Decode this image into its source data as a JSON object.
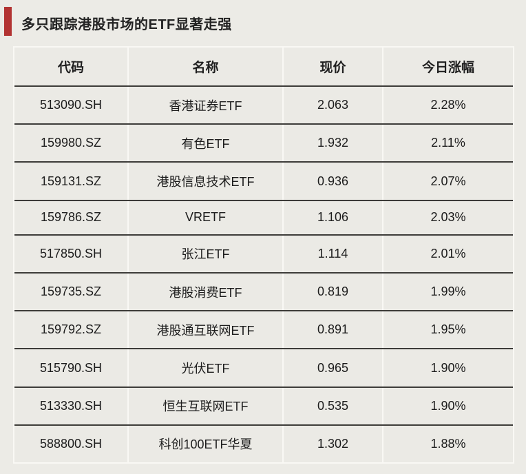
{
  "title": "多只跟踪港股市场的ETF显著走强",
  "accent_color": "#b23332",
  "table": {
    "columns": [
      "代码",
      "名称",
      "现价",
      "今日涨幅"
    ],
    "rows": [
      [
        "513090.SH",
        "香港证券ETF",
        "2.063",
        "2.28%"
      ],
      [
        "159980.SZ",
        "有色ETF",
        "1.932",
        "2.11%"
      ],
      [
        "159131.SZ",
        "港股信息技术ETF",
        "0.936",
        "2.07%"
      ],
      [
        "159786.SZ",
        "VRETF",
        "1.106",
        "2.03%"
      ],
      [
        "517850.SH",
        "张江ETF",
        "1.114",
        "2.01%"
      ],
      [
        "159735.SZ",
        "港股消费ETF",
        "0.819",
        "1.99%"
      ],
      [
        "159792.SZ",
        "港股通互联网ETF",
        "0.891",
        "1.95%"
      ],
      [
        "515790.SH",
        "光伏ETF",
        "0.965",
        "1.90%"
      ],
      [
        "513330.SH",
        "恒生互联网ETF",
        "0.535",
        "1.90%"
      ],
      [
        "588800.SH",
        "科创100ETF华夏",
        "1.302",
        "1.88%"
      ]
    ]
  },
  "chart_data": {
    "type": "table",
    "title": "多只跟踪港股市场的ETF显著走强",
    "columns": [
      "代码",
      "名称",
      "现价",
      "今日涨幅"
    ],
    "rows": [
      {
        "code": "513090.SH",
        "name": "香港证券ETF",
        "price": 2.063,
        "change_pct": "2.28%"
      },
      {
        "code": "159980.SZ",
        "name": "有色ETF",
        "price": 1.932,
        "change_pct": "2.11%"
      },
      {
        "code": "159131.SZ",
        "name": "港股信息技术ETF",
        "price": 0.936,
        "change_pct": "2.07%"
      },
      {
        "code": "159786.SZ",
        "name": "VRETF",
        "price": 1.106,
        "change_pct": "2.03%"
      },
      {
        "code": "517850.SH",
        "name": "张江ETF",
        "price": 1.114,
        "change_pct": "2.01%"
      },
      {
        "code": "159735.SZ",
        "name": "港股消费ETF",
        "price": 0.819,
        "change_pct": "1.99%"
      },
      {
        "code": "159792.SZ",
        "name": "港股通互联网ETF",
        "price": 0.891,
        "change_pct": "1.95%"
      },
      {
        "code": "515790.SH",
        "name": "光伏ETF",
        "price": 0.965,
        "change_pct": "1.90%"
      },
      {
        "code": "513330.SH",
        "name": "恒生互联网ETF",
        "price": 0.535,
        "change_pct": "1.90%"
      },
      {
        "code": "588800.SH",
        "name": "科创100ETF华夏",
        "price": 1.302,
        "change_pct": "1.88%"
      }
    ]
  }
}
